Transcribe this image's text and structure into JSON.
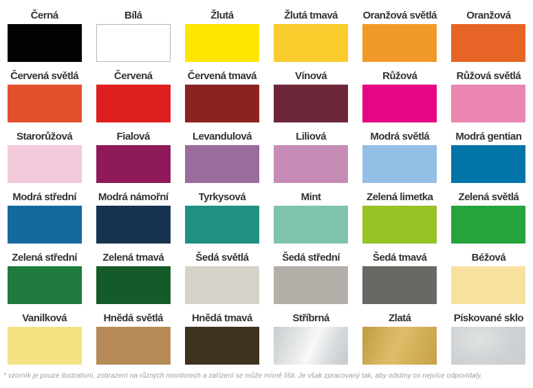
{
  "page": {
    "background": "#ffffff",
    "label_color": "#333333",
    "footnote_color": "#9b9b9b"
  },
  "palette": {
    "columns": 6,
    "swatches": [
      {
        "name": "cerna",
        "label": "Černá",
        "color": "#020202"
      },
      {
        "name": "bila",
        "label": "Bílá",
        "color": "#ffffff",
        "border": "#b5b5b5"
      },
      {
        "name": "zluta",
        "label": "Žlutá",
        "color": "#ffe600"
      },
      {
        "name": "zluta-tmava",
        "label": "Žlutá tmavá",
        "color": "#fbcc2d"
      },
      {
        "name": "oranzova-svetla",
        "label": "Oranžová světlá",
        "color": "#f29a29"
      },
      {
        "name": "oranzova",
        "label": "Oranžová",
        "color": "#e66425"
      },
      {
        "name": "cervena-svetla",
        "label": "Červená světlá",
        "color": "#e4502e"
      },
      {
        "name": "cervena",
        "label": "Červená",
        "color": "#de1f1f"
      },
      {
        "name": "cervena-tmava",
        "label": "Červená tmavá",
        "color": "#8b2420"
      },
      {
        "name": "vinova",
        "label": "Vínová",
        "color": "#6d2638"
      },
      {
        "name": "ruzova",
        "label": "Růžová",
        "color": "#e60584"
      },
      {
        "name": "ruzova-svetla",
        "label": "Růžová světlá",
        "color": "#eb86b1"
      },
      {
        "name": "staroruzova",
        "label": "Starorůžová",
        "color": "#f3c9dc"
      },
      {
        "name": "fialova",
        "label": "Fialová",
        "color": "#8e1a59"
      },
      {
        "name": "levandulova",
        "label": "Levandulová",
        "color": "#9c6b9e"
      },
      {
        "name": "liliova",
        "label": "Liliová",
        "color": "#c78cb6"
      },
      {
        "name": "modra-svetla",
        "label": "Modrá světlá",
        "color": "#93bee5"
      },
      {
        "name": "modra-gentian",
        "label": "Modrá gentian",
        "color": "#0374a8"
      },
      {
        "name": "modra-stredni",
        "label": "Modrá střední",
        "color": "#14699f"
      },
      {
        "name": "modra-namorni",
        "label": "Modrá námořní",
        "color": "#16334f"
      },
      {
        "name": "tyrkysova",
        "label": "Tyrkysová",
        "color": "#219081"
      },
      {
        "name": "mint",
        "label": "Mint",
        "color": "#80c3ac"
      },
      {
        "name": "zelena-limetka",
        "label": "Zelená limetka",
        "color": "#97c226"
      },
      {
        "name": "zelena-svetla",
        "label": "Zelená světlá",
        "color": "#25a43c"
      },
      {
        "name": "zelena-stredni",
        "label": "Zelená střední",
        "color": "#1e7b3d"
      },
      {
        "name": "zelena-tmava",
        "label": "Zelená tmavá",
        "color": "#155a2a"
      },
      {
        "name": "seda-svetla",
        "label": "Šedá světlá",
        "color": "#d7d3ca"
      },
      {
        "name": "seda-stredni",
        "label": "Šedá střední",
        "color": "#b4afa8"
      },
      {
        "name": "seda-tmava",
        "label": "Šedá tmavá",
        "color": "#6a6865"
      },
      {
        "name": "bezova",
        "label": "Béžová",
        "color": "#f8e09f"
      },
      {
        "name": "vanilkova",
        "label": "Vanilková",
        "color": "#f4e283"
      },
      {
        "name": "hneda-svetla",
        "label": "Hnědá světlá",
        "color": "#b68b58"
      },
      {
        "name": "hneda-tmava",
        "label": "Hnědá tmavá",
        "color": "#3e321f"
      },
      {
        "name": "stribrna",
        "label": "Stříbrná",
        "color": "#d9dcde",
        "gradient": "linear-gradient(112deg, #c9ccce 0%, #e9ebec 38%, #f8f9f9 52%, #d8dbdd 76%, #c6c9cc 100%)"
      },
      {
        "name": "zlata",
        "label": "Zlatá",
        "color": "#cfab52",
        "gradient": "linear-gradient(112deg, #bf9941 0%, #d4b35d 30%, #dcbd6a 48%, #d2af54 72%, #c5a049 100%)"
      },
      {
        "name": "piskovane-sklo",
        "label": "Pískované sklo",
        "color": "#cdd0d2",
        "gradient": "radial-gradient(ellipse 90% 130% at 38% 32%, #e0e2e3 0%, #cfd2d4 48%, #c7cacd 100%)"
      }
    ]
  },
  "footnote": {
    "text": "* vzorník je pouze ilustrativní, zobrazení na různých monitorech a zařízení se může mírně lišit. Je však zpracovaný tak, aby odstíny co nejvíce odpovídaly."
  }
}
